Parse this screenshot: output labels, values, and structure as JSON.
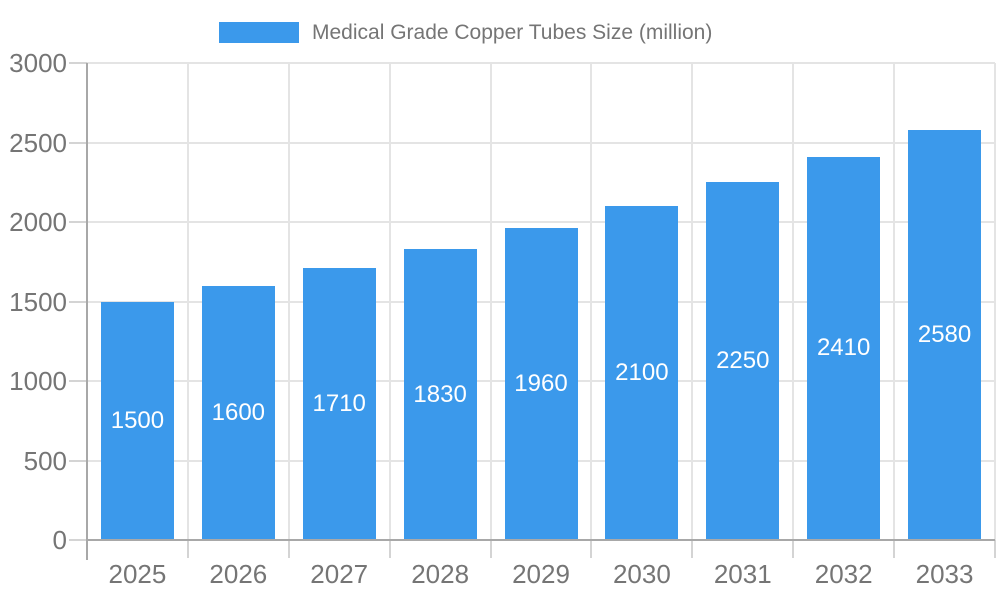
{
  "chart_data": {
    "type": "bar",
    "title": "Medical Grade Copper Tubes Size (million)",
    "categories": [
      "2025",
      "2026",
      "2027",
      "2028",
      "2029",
      "2030",
      "2031",
      "2032",
      "2033"
    ],
    "values": [
      1500,
      1600,
      1710,
      1830,
      1960,
      2100,
      2250,
      2410,
      2580
    ],
    "series": [
      {
        "name": "Medical Grade Copper Tubes Size (million)",
        "values": [
          1500,
          1600,
          1710,
          1830,
          1960,
          2100,
          2250,
          2410,
          2580
        ]
      }
    ],
    "xlabel": "",
    "ylabel": "",
    "ylim": [
      0,
      3000
    ],
    "yticks": [
      0,
      500,
      1000,
      1500,
      2000,
      2500,
      3000
    ],
    "grid": true,
    "legend_position": "top",
    "value_labels": "inside-center",
    "colors": {
      "bar": "#3B99EB",
      "value_label_text": "#ffffff",
      "axis_text": "#757575",
      "title_text": "#757575",
      "axis_line": "#a8a8a8",
      "gridline": "#e4e4e4",
      "tick": "#d4d4d4",
      "background": "#ffffff"
    }
  },
  "legend": {
    "label": "Medical Grade Copper Tubes Size (million)"
  }
}
